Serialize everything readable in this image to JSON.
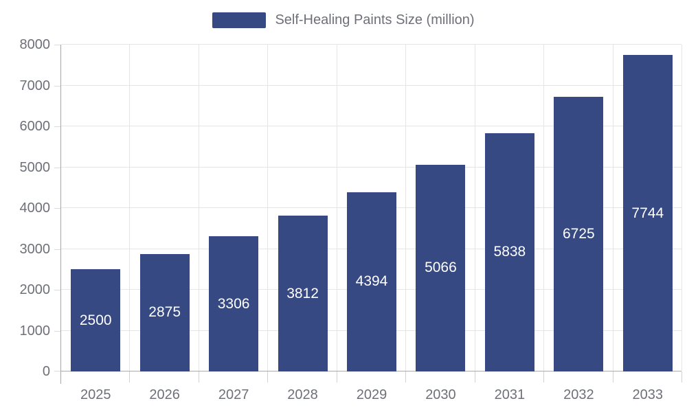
{
  "chart_data": {
    "type": "bar",
    "title": "",
    "legend": "Self-Healing Paints Size (million)",
    "legend_position": "top-center",
    "categories": [
      "2025",
      "2026",
      "2027",
      "2028",
      "2029",
      "2030",
      "2031",
      "2032",
      "2033"
    ],
    "values": [
      2500,
      2875,
      3306,
      3812,
      4394,
      5066,
      5838,
      6725,
      7744
    ],
    "xlabel": "",
    "ylabel": "",
    "ylim": [
      0,
      8000
    ],
    "ytick_step": 1000,
    "ytick_labels": [
      "0",
      "1000",
      "2000",
      "3000",
      "4000",
      "5000",
      "6000",
      "7000",
      "8000"
    ],
    "grid": true,
    "colors": {
      "bar": "#374983",
      "bar_value_label": "#ffffff",
      "axis_text": "#6e7079",
      "legend_text": "#6e7079",
      "gridline": "#e5e5e5",
      "axis_line": "#a6a6a6",
      "tick": "#d2d2d2",
      "background": "#ffffff"
    }
  }
}
